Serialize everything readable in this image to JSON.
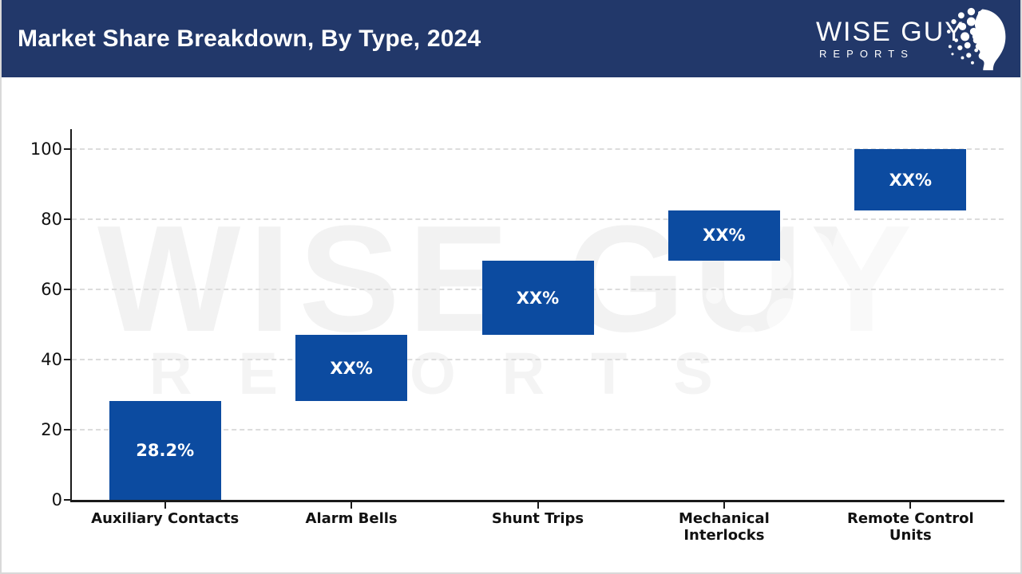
{
  "header": {
    "title": "Market Share Breakdown, By Type, 2024",
    "bg_color": "#22386A",
    "logo": {
      "line1": "WISE GUY",
      "line2": "REPORTS"
    }
  },
  "watermark": {
    "line1": "WISE GUY",
    "line2": "REPORTS"
  },
  "chart_data": {
    "type": "bar",
    "subtype": "waterfall-stacked-progression",
    "title": "Market Share Breakdown, By Type, 2024",
    "categories": [
      "Auxiliary Contacts",
      "Alarm Bells",
      "Shunt Trips",
      "Mechanical Interlocks",
      "Remote Control Units"
    ],
    "category_display_lines": [
      [
        "Auxiliary Contacts"
      ],
      [
        "Alarm Bells"
      ],
      [
        "Shunt Trips"
      ],
      [
        "Mechanical",
        "Interlocks"
      ],
      [
        "Remote Control",
        "Units"
      ]
    ],
    "series": [
      {
        "name": "Market Share",
        "values": [
          28.2,
          18.8,
          21.2,
          14.3,
          17.5
        ],
        "cumulative": [
          28.2,
          47.0,
          68.2,
          82.5,
          100.0
        ]
      }
    ],
    "segments": [
      {
        "start": 0,
        "end": 28.2,
        "label": "28.2%"
      },
      {
        "start": 28.2,
        "end": 47.0,
        "label": "XX%"
      },
      {
        "start": 47.0,
        "end": 68.2,
        "label": "XX%"
      },
      {
        "start": 68.2,
        "end": 82.5,
        "label": "XX%"
      },
      {
        "start": 82.5,
        "end": 100.0,
        "label": "XX%"
      }
    ],
    "xlabel": "",
    "ylabel": "",
    "ylim": [
      0,
      100
    ],
    "yticks": [
      0,
      20,
      40,
      60,
      80,
      100
    ],
    "grid": "horizontal dashed",
    "legend": "none",
    "bar_color": "#0C4BA0",
    "bar_label_color": "#FFFFFF",
    "axis_color": "#1A1A1A",
    "grid_color": "#DCDCDC"
  }
}
